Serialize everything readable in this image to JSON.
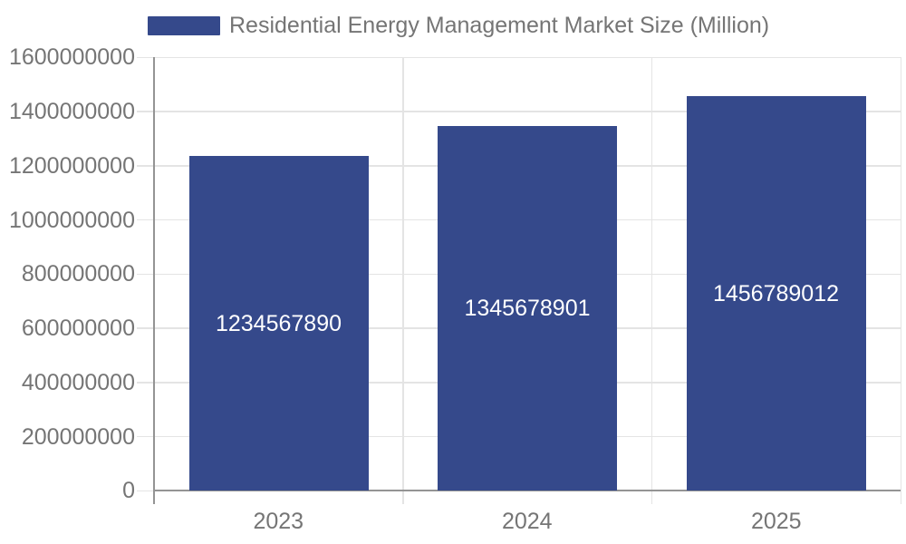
{
  "colors": {
    "bar": "#35498B",
    "grid": "#E4E4E4",
    "axis": "#949494",
    "text": "#757575",
    "bar_label": "#FFFFFF",
    "background": "#FFFFFF"
  },
  "chart_data": {
    "type": "bar",
    "title": "",
    "legend": "Residential Energy Management Market Size (Million)",
    "legend_position": "top-left",
    "categories": [
      "2023",
      "2024",
      "2025"
    ],
    "values": [
      1234567890,
      1345678901,
      1456789012
    ],
    "value_labels": [
      "1234567890",
      "1345678901",
      "1456789012"
    ],
    "xlabel": "",
    "ylabel": "",
    "ylim": [
      0,
      1600000000
    ],
    "ytick_step": 200000000,
    "ytick_labels": [
      "0",
      "200000000",
      "400000000",
      "600000000",
      "800000000",
      "1000000000",
      "1200000000",
      "1400000000",
      "1600000000"
    ],
    "grid": true
  }
}
